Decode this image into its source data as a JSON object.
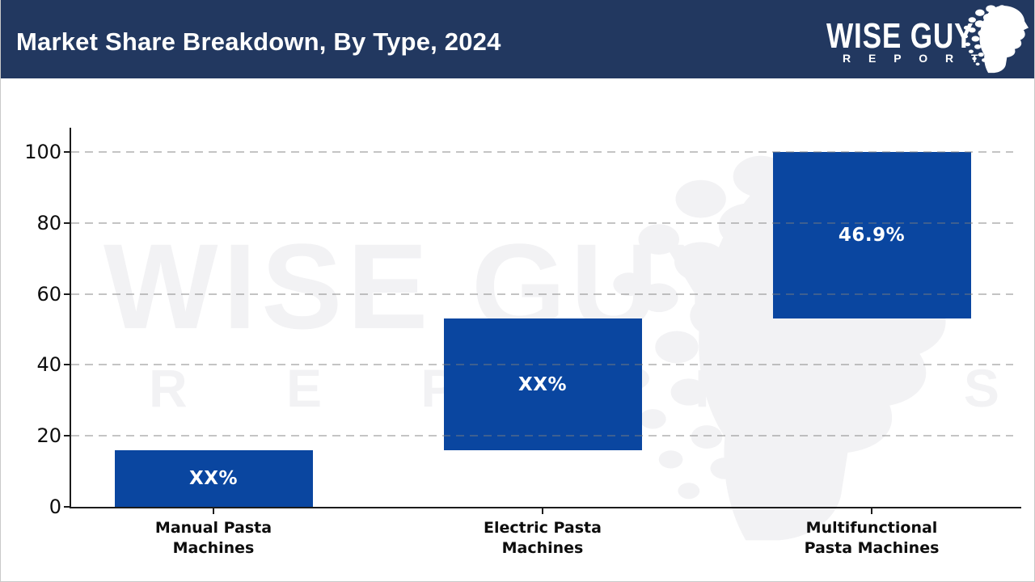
{
  "header": {
    "title": "Market Share Breakdown, By Type, 2024",
    "logo": {
      "primary": "WISE GUY",
      "secondary": "R E P O R T S"
    }
  },
  "watermark": {
    "primary": "WISE GUY",
    "secondary": "R E P O R T S"
  },
  "chart_data": {
    "type": "bar",
    "subtype": "waterfall",
    "title": "Market Share Breakdown, By Type, 2024",
    "categories": [
      "Manual Pasta Machines",
      "Electric Pasta Machines",
      "Multifunctional Pasta Machines"
    ],
    "category_label_lines": [
      [
        "Manual Pasta",
        "Machines"
      ],
      [
        "Electric Pasta",
        "Machines"
      ],
      [
        "Multifunctional",
        "Pasta Machines"
      ]
    ],
    "segments": [
      {
        "category": "Manual Pasta Machines",
        "start": 0,
        "end": 15.9,
        "value": 15.9,
        "label": "XX%"
      },
      {
        "category": "Electric Pasta Machines",
        "start": 15.9,
        "end": 53.1,
        "value": 37.2,
        "label": "XX%"
      },
      {
        "category": "Multifunctional Pasta Machines",
        "start": 53.1,
        "end": 100,
        "value": 46.9,
        "label": "46.9%"
      }
    ],
    "xlabel": "",
    "ylabel": "",
    "ylim": [
      0,
      100
    ],
    "yticks": [
      0,
      20,
      40,
      60,
      80,
      100
    ],
    "grid": true,
    "grid_style": "dashed",
    "legend": false,
    "bar_color": "#0a46a0",
    "colors": {
      "header_bg": "#223860",
      "bar": "#0a46a0",
      "axis": "#1c1c1c",
      "watermark": "#f2f2f4"
    }
  }
}
